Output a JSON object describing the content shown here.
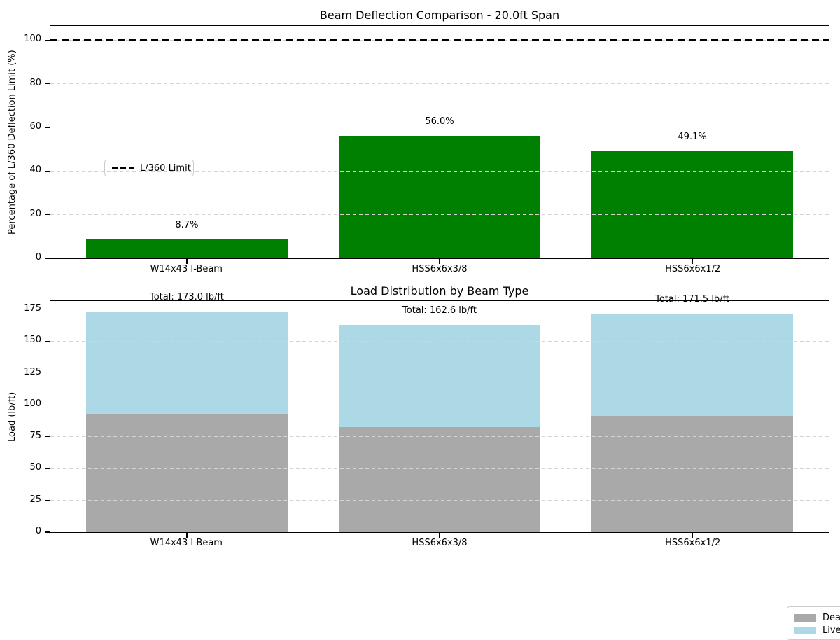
{
  "chart_data": [
    {
      "type": "bar",
      "title": "Beam Deflection Comparison - 20.0ft Span",
      "ylabel": "Percentage of L/360 Deflection Limit (%)",
      "xlabel": "",
      "categories": [
        "W14x43 I-Beam",
        "HSS6x6x3/8",
        "HSS6x6x1/2"
      ],
      "values": [
        8.7,
        56.0,
        49.1
      ],
      "value_labels": [
        "8.7%",
        "56.0%",
        "49.1%"
      ],
      "bar_color": "#008000",
      "yticks": [
        0,
        20,
        40,
        60,
        80,
        100
      ],
      "ylim": [
        0,
        106.5
      ],
      "grid": {
        "axis": "y",
        "style": "dashed",
        "color": "#d3d3d3",
        "on": true
      },
      "reference_line": {
        "value": 100,
        "label": "L/360 Limit",
        "color": "#000000",
        "style": "dashed"
      },
      "legend": {
        "position": "center-left",
        "entries": [
          {
            "label": "L/360 Limit",
            "marker": "dashed-line",
            "color": "#000000"
          }
        ]
      }
    },
    {
      "type": "stacked-bar",
      "title": "Load Distribution by Beam Type",
      "ylabel": "Load (lb/ft)",
      "xlabel": "",
      "categories": [
        "W14x43 I-Beam",
        "HSS6x6x3/8",
        "HSS6x6x1/2"
      ],
      "series": [
        {
          "name": "Dead Load",
          "color": "#a9a9a9",
          "values": [
            93.0,
            82.6,
            91.5
          ]
        },
        {
          "name": "Live Load",
          "color": "#add8e6",
          "values": [
            80.0,
            80.0,
            80.0
          ]
        }
      ],
      "totals": [
        173.0,
        162.6,
        171.5
      ],
      "total_labels": [
        "Total: 173.0 lb/ft",
        "Total: 162.6 lb/ft",
        "Total: 171.5 lb/ft"
      ],
      "yticks": [
        0,
        25,
        50,
        75,
        100,
        125,
        150,
        175
      ],
      "ylim": [
        0,
        181.5
      ],
      "grid": {
        "axis": "y",
        "style": "dashed",
        "color": "#d3d3d3",
        "on": true
      },
      "legend": {
        "position": "upper-right",
        "entries": [
          {
            "label": "Dead Load",
            "marker": "rect",
            "color": "#a9a9a9"
          },
          {
            "label": "Live Load",
            "marker": "rect",
            "color": "#add8e6"
          }
        ]
      }
    }
  ]
}
